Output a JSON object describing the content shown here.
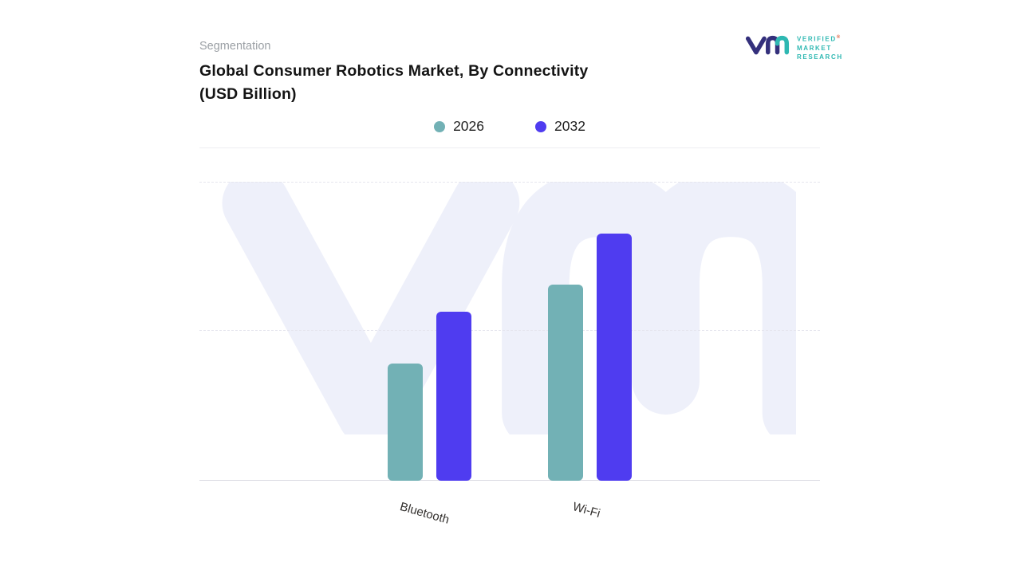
{
  "page": {
    "background": "#ffffff"
  },
  "header": {
    "eyebrow": "Segmentation",
    "title_line1": "Global Consumer Robotics Market, By Connectivity",
    "title_line2": "(USD Billion)"
  },
  "brand": {
    "name_lines": [
      "VERIFIED",
      "MARKET",
      "RESEARCH"
    ],
    "registered_mark": "®",
    "mark_color": "#34307c",
    "text_color": "#2eb8b2"
  },
  "legend": {
    "items": [
      {
        "label": "2026",
        "color": "#72b1b5"
      },
      {
        "label": "2032",
        "color": "#4f3cf0"
      }
    ]
  },
  "chart_data": {
    "type": "bar",
    "title": "Global Consumer Robotics Market, By Connectivity (USD Billion)",
    "categories": [
      "Bluetooth",
      "Wi-Fi"
    ],
    "series": [
      {
        "name": "2026",
        "color": "#72b1b5",
        "values": [
          39,
          65
        ]
      },
      {
        "name": "2032",
        "color": "#4f3cf0",
        "values": [
          56,
          82
        ]
      }
    ],
    "xlabel": "",
    "ylabel": "",
    "ylim": [
      0,
      100
    ],
    "yaxis_tick_labels_visible": false,
    "grid": "horizontal-dashed",
    "legend_position": "top-center",
    "note": "Axis has no numeric tick labels; values are relative bar heights on a 0-100 scale."
  }
}
